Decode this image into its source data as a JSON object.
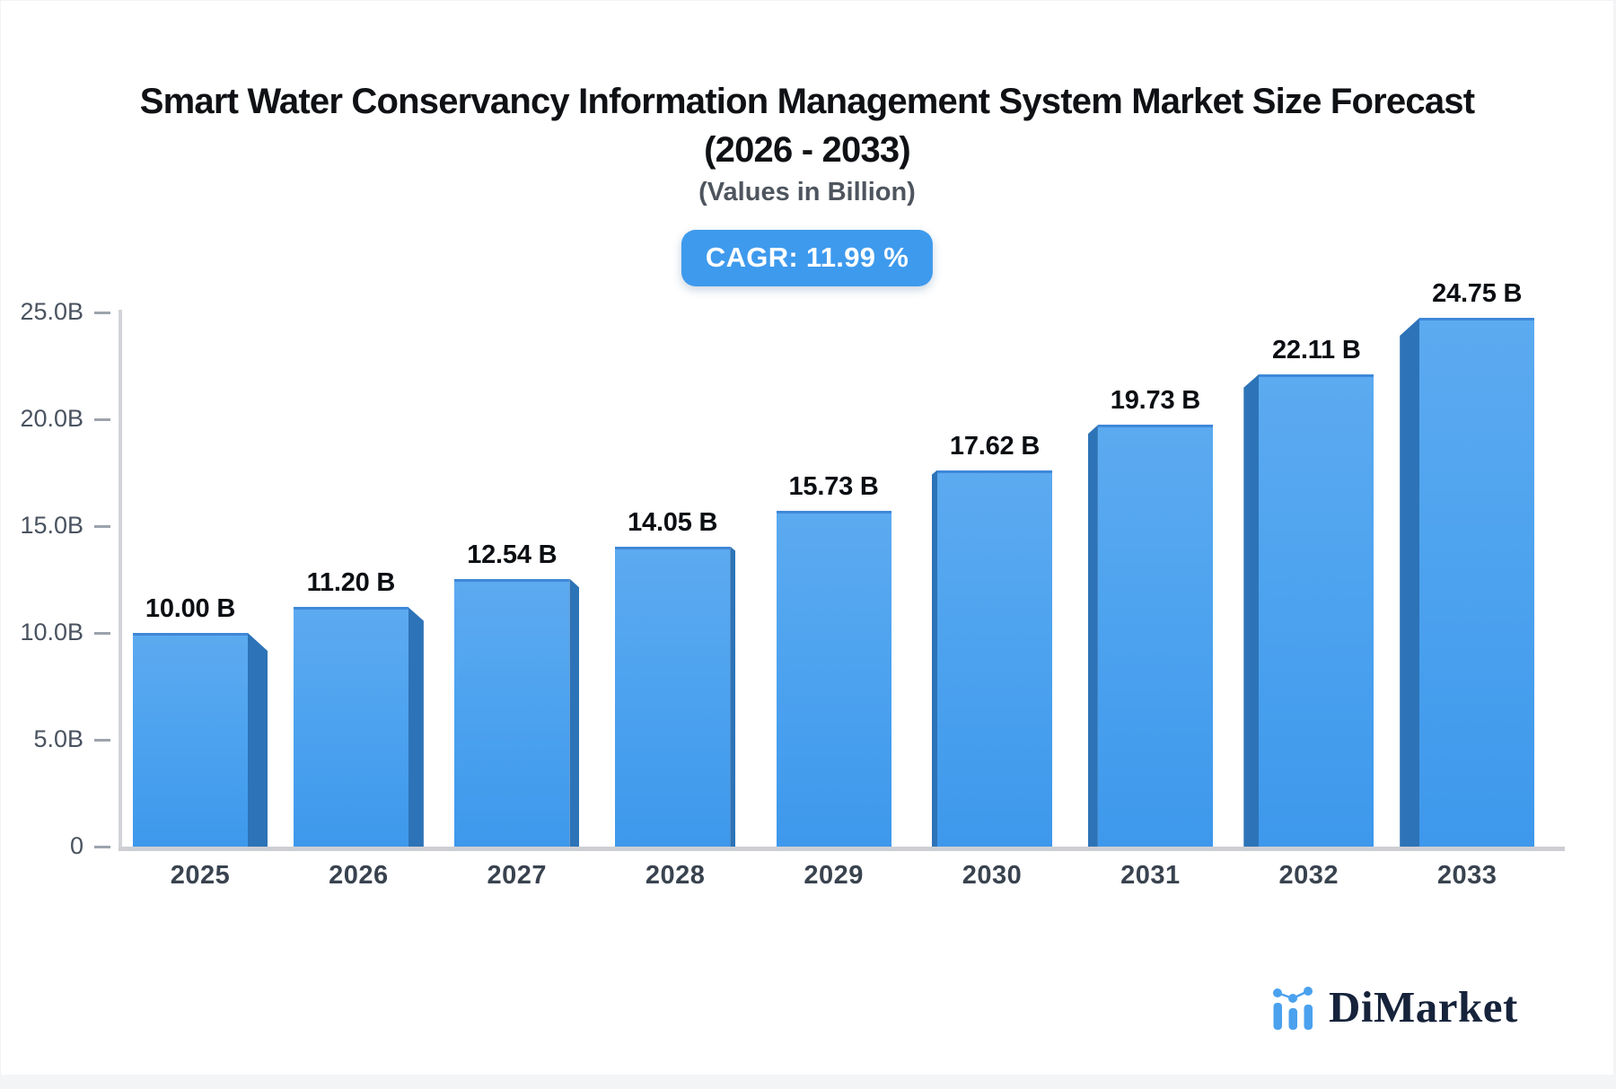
{
  "header": {
    "title_line1": "Smart Water Conservancy Information Management System Market Size Forecast",
    "title_line2": "(2026 - 2033)",
    "values_note": "(Values in Billion)",
    "cagr_badge": "CAGR: 11.99 %"
  },
  "chart_data": {
    "type": "bar",
    "title": "Smart Water Conservancy Information Management System Market Size Forecast (2026 - 2033)",
    "subtitle": "(Values in Billion)",
    "cagr_percent": 11.99,
    "categories": [
      "2025",
      "2026",
      "2027",
      "2028",
      "2029",
      "2030",
      "2031",
      "2032",
      "2033"
    ],
    "values": [
      10.0,
      11.2,
      12.54,
      14.05,
      15.73,
      17.62,
      19.73,
      22.11,
      24.75
    ],
    "value_labels": [
      "10.00 B",
      "11.20 B",
      "12.54 B",
      "14.05 B",
      "15.73 B",
      "17.62 B",
      "19.73 B",
      "22.11 B",
      "24.75 B"
    ],
    "unit": "Billion",
    "xlabel": "",
    "ylabel": "",
    "ylim": [
      0,
      25
    ],
    "y_ticks": [
      {
        "label": "25.0B",
        "value": 25
      },
      {
        "label": "20.0B",
        "value": 20
      },
      {
        "label": "15.0B",
        "value": 15
      },
      {
        "label": "10.0B",
        "value": 10
      },
      {
        "label": "5.0B",
        "value": 5
      },
      {
        "label": "0",
        "value": 0
      }
    ],
    "grid": false,
    "legend": false,
    "style": "3d-perspective-bars",
    "colors": {
      "bar_face_top": "#5caaf0",
      "bar_face_bottom": "#3e98ec",
      "bar_side": "#2d73b7",
      "bar_top_edge": "#3f88d9",
      "axis": "#cdcfd4",
      "tick_text": "#4a5360",
      "badge_bg": "#3e9aed",
      "badge_text": "#ffffff"
    }
  },
  "branding": {
    "name": "DiMarket",
    "icon": "bar-chart-logo-icon",
    "accent": "#4aa1ee",
    "text_color": "#16233b"
  }
}
